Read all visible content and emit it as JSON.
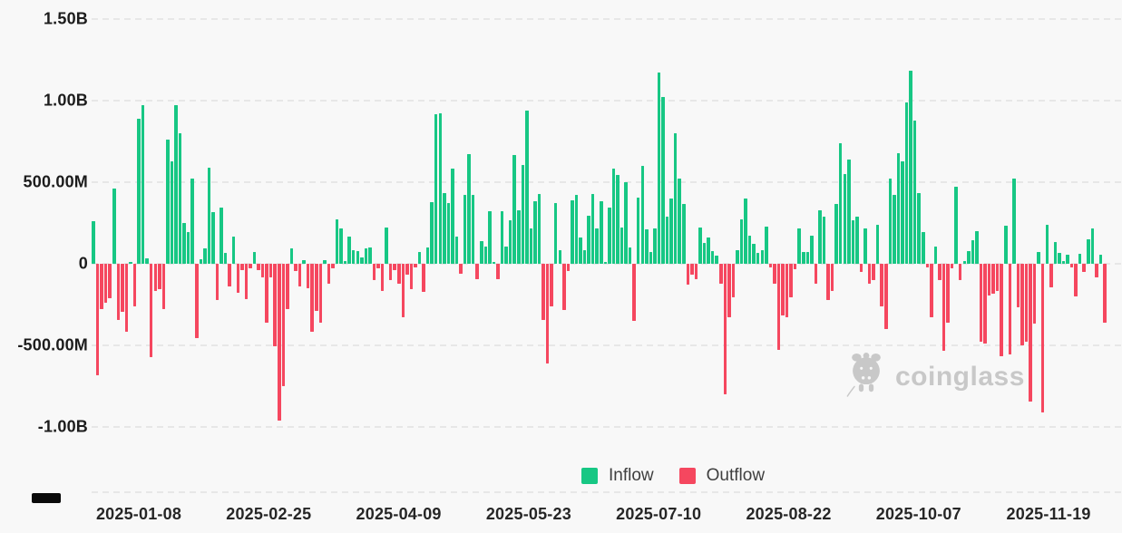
{
  "background_color": "#f8f8f8",
  "watermark": {
    "text": "coinglass",
    "icon": "coinglass-mascot-icon",
    "color": "#c6c6c6"
  },
  "legend": {
    "inflow_label": "Inflow",
    "outflow_label": "Outflow"
  },
  "chart_data": {
    "type": "bar",
    "title": "",
    "xlabel": "",
    "ylabel": "",
    "unit": "USD",
    "values_unit": "millions USD (positive = Inflow, negative = Outflow)",
    "grid": "dashed-horizontal",
    "legend_position": "bottom-center",
    "legend_entries": [
      {
        "label": "Inflow",
        "color": "#17c784"
      },
      {
        "label": "Outflow",
        "color": "#f5475f"
      }
    ],
    "y_ticks": [
      {
        "label": "1.50B",
        "value": 1500
      },
      {
        "label": "1.00B",
        "value": 1000
      },
      {
        "label": "500.00M",
        "value": 500
      },
      {
        "label": "0",
        "value": 0
      },
      {
        "label": "-500.00M",
        "value": -500
      },
      {
        "label": "-1.00B",
        "value": -1000
      }
    ],
    "extra_gridline_values": [
      -1400
    ],
    "ylim": [
      -1400,
      1600
    ],
    "x_tick_labels": [
      "2025-01-08",
      "2025-02-25",
      "2025-04-09",
      "2025-05-23",
      "2025-07-10",
      "2025-08-22",
      "2025-10-07",
      "2025-11-19"
    ],
    "values": [
      260,
      -685,
      -278,
      -241,
      -213,
      463,
      -343,
      -296,
      -417,
      10,
      -260,
      890,
      972,
      33,
      -574,
      -167,
      -157,
      -278,
      760,
      630,
      970,
      800,
      250,
      195,
      520,
      -455,
      30,
      95,
      590,
      315,
      -220,
      345,
      65,
      -140,
      165,
      -175,
      -40,
      -215,
      -25,
      75,
      -40,
      -85,
      -360,
      -85,
      -505,
      -960,
      -750,
      -278,
      93,
      -46,
      -140,
      20,
      -148,
      -415,
      -287,
      -360,
      20,
      -120,
      -30,
      275,
      215,
      15,
      165,
      85,
      80,
      40,
      95,
      100,
      -100,
      -30,
      -165,
      220,
      -100,
      -40,
      -120,
      -330,
      -65,
      -155,
      -20,
      75,
      -170,
      100,
      380,
      915,
      925,
      435,
      375,
      585,
      165,
      -60,
      420,
      675,
      425,
      -95,
      140,
      105,
      325,
      10,
      -95,
      320,
      105,
      265,
      665,
      330,
      605,
      940,
      215,
      385,
      430,
      -345,
      -610,
      -260,
      375,
      85,
      -285,
      -45,
      390,
      425,
      160,
      85,
      295,
      430,
      215,
      385,
      10,
      345,
      585,
      545,
      220,
      500,
      100,
      -350,
      405,
      600,
      210,
      70,
      215,
      1170,
      1025,
      290,
      400,
      800,
      525,
      365,
      -130,
      -65,
      -95,
      220,
      130,
      160,
      80,
      50,
      -120,
      -800,
      -325,
      -205,
      85,
      270,
      400,
      175,
      120,
      65,
      85,
      230,
      -20,
      -120,
      -530,
      -315,
      -325,
      -205,
      -35,
      215,
      70,
      75,
      175,
      -120,
      330,
      290,
      -220,
      -165,
      365,
      740,
      550,
      640,
      265,
      290,
      -50,
      215,
      -120,
      -100,
      240,
      -260,
      -400,
      520,
      425,
      680,
      630,
      990,
      1185,
      880,
      435,
      195,
      -20,
      -325,
      105,
      -100,
      -535,
      -360,
      -30,
      475,
      -100,
      15,
      80,
      145,
      200,
      -480,
      -490,
      -195,
      -185,
      -165,
      -565,
      235,
      -555,
      525,
      -265,
      -500,
      -475,
      -845,
      -365,
      75,
      -910,
      240,
      -145,
      135,
      65,
      15,
      55,
      -20,
      -200,
      60,
      -50,
      150,
      215,
      -85,
      55,
      -360
    ]
  }
}
